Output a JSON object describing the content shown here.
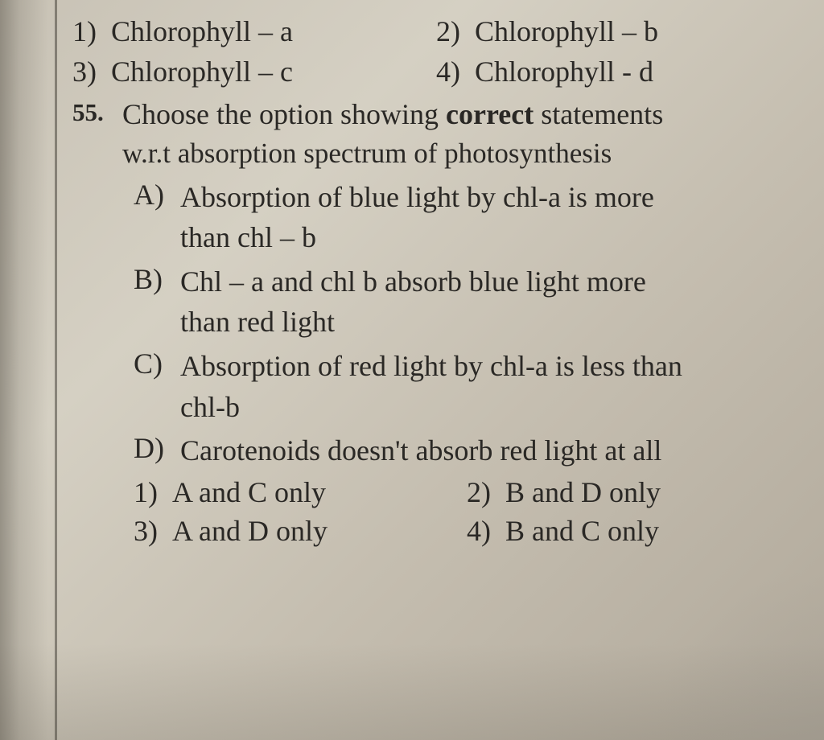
{
  "top_options": {
    "opt1": {
      "num": "1)",
      "text": "Chlorophyll – a"
    },
    "opt2": {
      "num": "2)",
      "text": "Chlorophyll – b"
    },
    "opt3": {
      "num": "3)",
      "text": "Chlorophyll – c"
    },
    "opt4": {
      "num": "4)",
      "text": "Chlorophyll - d"
    }
  },
  "question": {
    "number": "55.",
    "line1a": "Choose the option showing ",
    "bold_word": "correct",
    "line1b": " statements",
    "line2": "w.r.t absorption spectrum of photosynthesis"
  },
  "statements": {
    "A": {
      "letter": "A)",
      "line1": "Absorption of blue light by chl-a is more",
      "line2": "than chl – b"
    },
    "B": {
      "letter": "B)",
      "line1": "Chl – a and chl b absorb blue light more",
      "line2": "than red light"
    },
    "C": {
      "letter": "C)",
      "line1": "Absorption of red light by chl-a is less than",
      "line2": "chl-b"
    },
    "D": {
      "letter": "D)",
      "line1": "Carotenoids doesn't absorb red light at all",
      "line2": ""
    }
  },
  "answers": {
    "a1": {
      "num": "1)",
      "text": "A and C only"
    },
    "a2": {
      "num": "2)",
      "text": "B and D only"
    },
    "a3": {
      "num": "3)",
      "text": "A and D only"
    },
    "a4": {
      "num": "4)",
      "text": "B and C only"
    }
  },
  "styling": {
    "text_color": "#2a2825",
    "background_gradient_start": "#c8c2b5",
    "background_gradient_mid": "#d5d0c3",
    "background_gradient_end": "#b0a89a",
    "vertical_line_color": "rgba(60,55,48,0.5)",
    "font_family": "Times New Roman",
    "body_fontsize": 36,
    "qnum_fontsize": 31,
    "line_height": 1.35
  }
}
